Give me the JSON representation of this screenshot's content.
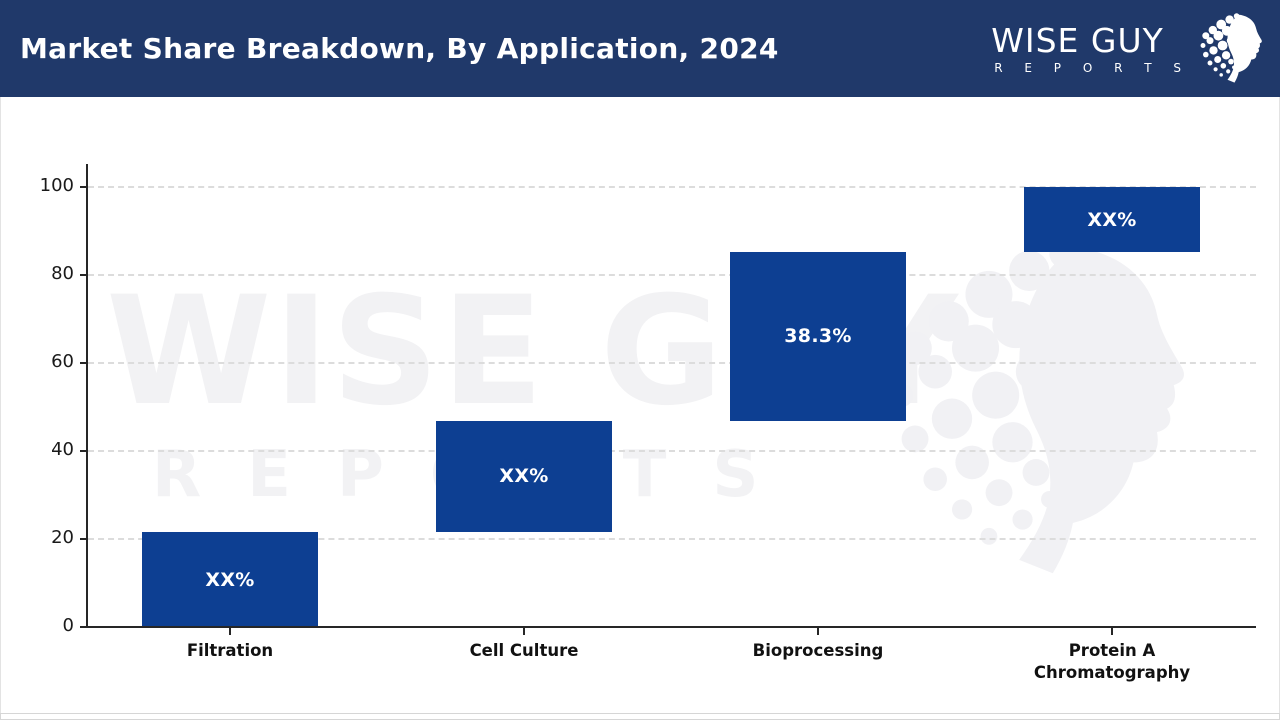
{
  "header": {
    "title": "Market Share Breakdown, By Application, 2024",
    "bg_color": "#20396a",
    "text_color": "#ffffff",
    "brand": {
      "line1": "WISE GUY",
      "line2": "R E P O R T S",
      "head_icon": "dotted-head-logo"
    }
  },
  "watermark": {
    "line1": "WISE GUY",
    "line2": "REPORTS",
    "color": "#f2f2f4"
  },
  "chart_data": {
    "type": "bar",
    "subtype": "floating-segment-bars-stacked-percentage",
    "title": "Market Share Breakdown, By Application, 2024",
    "categories": [
      "Filtration",
      "Cell Culture",
      "Bioprocessing",
      "Protein A\nChromatography"
    ],
    "segments": [
      {
        "category": "Filtration",
        "start": 0,
        "end": 21.5,
        "value_label": "XX%"
      },
      {
        "category": "Cell Culture",
        "start": 21.6,
        "end": 46.9,
        "value_label": "XX%"
      },
      {
        "category": "Bioprocessing",
        "start": 46.9,
        "end": 85.2,
        "value_label": "38.3%"
      },
      {
        "category": "Protein A Chromatography",
        "start": 85.2,
        "end": 100,
        "value_label": "XX%"
      }
    ],
    "values": [
      21.5,
      25.3,
      38.3,
      14.8
    ],
    "ylim": [
      0,
      105
    ],
    "yticks": [
      0,
      20,
      40,
      60,
      80,
      100
    ],
    "grid": {
      "horizontal": true,
      "style": "dashed",
      "color": "#dcdcdc"
    },
    "bar_color": "#0d3f92",
    "bar_label_color": "#ffffff",
    "axis_color": "#262626",
    "tick_label_color": "#1a1a1a",
    "legend": "none",
    "xlabel": "",
    "ylabel": ""
  },
  "footer": {
    "border_color": "#d6d6d6"
  }
}
